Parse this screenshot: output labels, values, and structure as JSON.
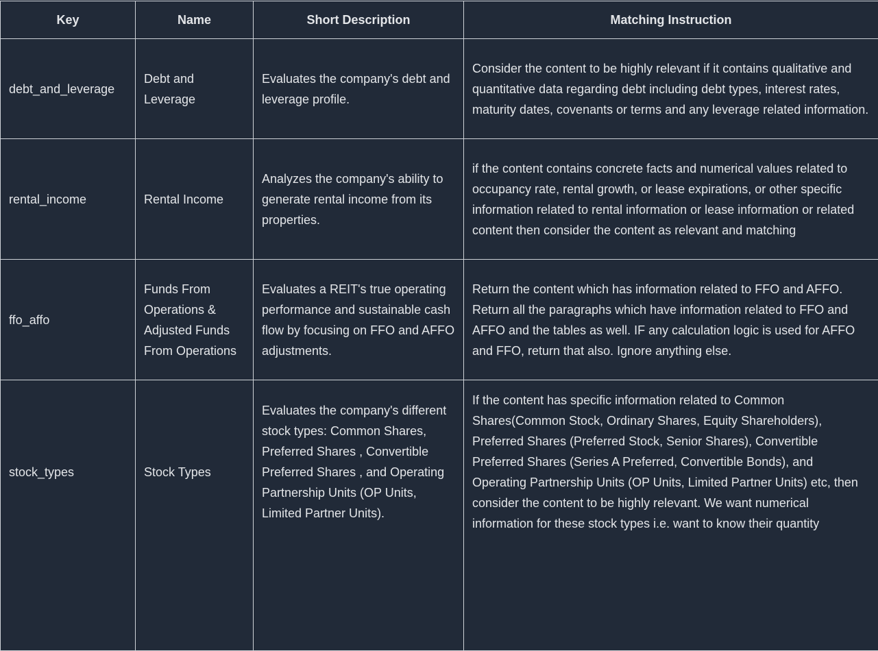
{
  "table": {
    "headers": [
      "Key",
      "Name",
      "Short Description",
      "Matching Instruction"
    ],
    "rows": [
      {
        "key": "debt_and_leverage",
        "name": "Debt and Leverage",
        "description": "Evaluates the company's debt and leverage profile.",
        "instruction": "Consider the content to be highly relevant if it contains qualitative and quantitative data regarding debt including debt types, interest rates, maturity dates, covenants or terms and any leverage related information."
      },
      {
        "key": "rental_income",
        "name": "Rental Income",
        "description": "Analyzes the company's ability to generate rental income from its properties.",
        "instruction": "if the content contains concrete facts and numerical values related to occupancy rate, rental growth, or lease expirations, or other specific information related to rental information or lease information or related content then consider the content as relevant and matching"
      },
      {
        "key": "ffo_affo",
        "name": "Funds From Operations & Adjusted Funds From Operations",
        "description": "Evaluates a REIT's true operating performance and sustainable cash flow by focusing on FFO and AFFO adjustments.",
        "instruction": "Return the content which has information related to FFO and AFFO. Return all the paragraphs which have information related to FFO and AFFO and the tables as well. IF any calculation logic is used for AFFO and FFO, return that also. Ignore anything else."
      },
      {
        "key": "stock_types",
        "name": "Stock Types",
        "description": "Evaluates the company's different stock types: Common Shares, Preferred Shares , Convertible Preferred Shares , and Operating Partnership Units (OP Units, Limited Partner Units).",
        "instruction": "If the content has specific information related to Common Shares(Common Stock, Ordinary Shares, Equity Shareholders), Preferred Shares (Preferred Stock, Senior Shares), Convertible Preferred Shares (Series A Preferred, Convertible Bonds), and Operating Partnership Units (OP Units, Limited Partner Units) etc, then consider the content to be highly relevant. We want numerical information for these stock types i.e. want to know their quantity"
      }
    ]
  }
}
